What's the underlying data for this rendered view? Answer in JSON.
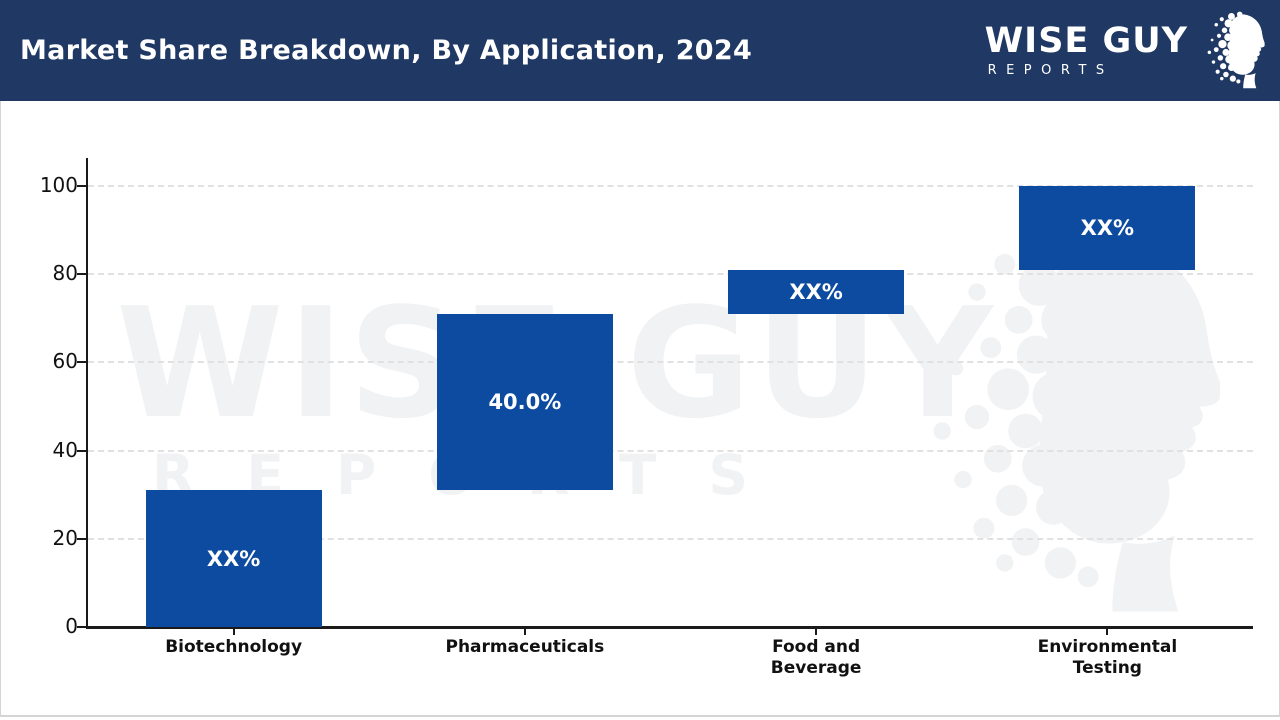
{
  "header": {
    "title": "Market Share Breakdown, By Application, 2024",
    "logo": {
      "wordmark": "WISE GUY",
      "subtext": "REPORTS",
      "icon": "face-profile-dots-icon"
    }
  },
  "watermark": {
    "wordmark": "WISE GUY",
    "subtext": "REPORTS"
  },
  "chart_data": {
    "type": "bar",
    "subtype": "waterfall",
    "title": "Market Share Breakdown, By Application, 2024",
    "categories": [
      "Biotechnology",
      "Pharmaceuticals",
      "Food and Beverage",
      "Environmental Testing"
    ],
    "segments": [
      {
        "category": "Biotechnology",
        "start": 0,
        "end": 31,
        "value_label": "XX%"
      },
      {
        "category": "Pharmaceuticals",
        "start": 31,
        "end": 71,
        "value_label": "40.0%"
      },
      {
        "category": "Food and Beverage",
        "start": 71,
        "end": 81,
        "value_label": "XX%"
      },
      {
        "category": "Environmental Testing",
        "start": 81,
        "end": 100,
        "value_label": "XX%"
      }
    ],
    "yticks": [
      0,
      20,
      40,
      60,
      80,
      100
    ],
    "ylim": [
      0,
      106
    ],
    "xlabel": "",
    "ylabel": "",
    "grid": "dashed-horizontal",
    "legend": "none",
    "colors": {
      "bar": "#0d4ba1",
      "bar_label": "#ffffff",
      "header_bg": "#1f3864",
      "axis": "#1a1a1a",
      "gridline": "#e1e1e1",
      "watermark": "#f1f2f4"
    }
  }
}
